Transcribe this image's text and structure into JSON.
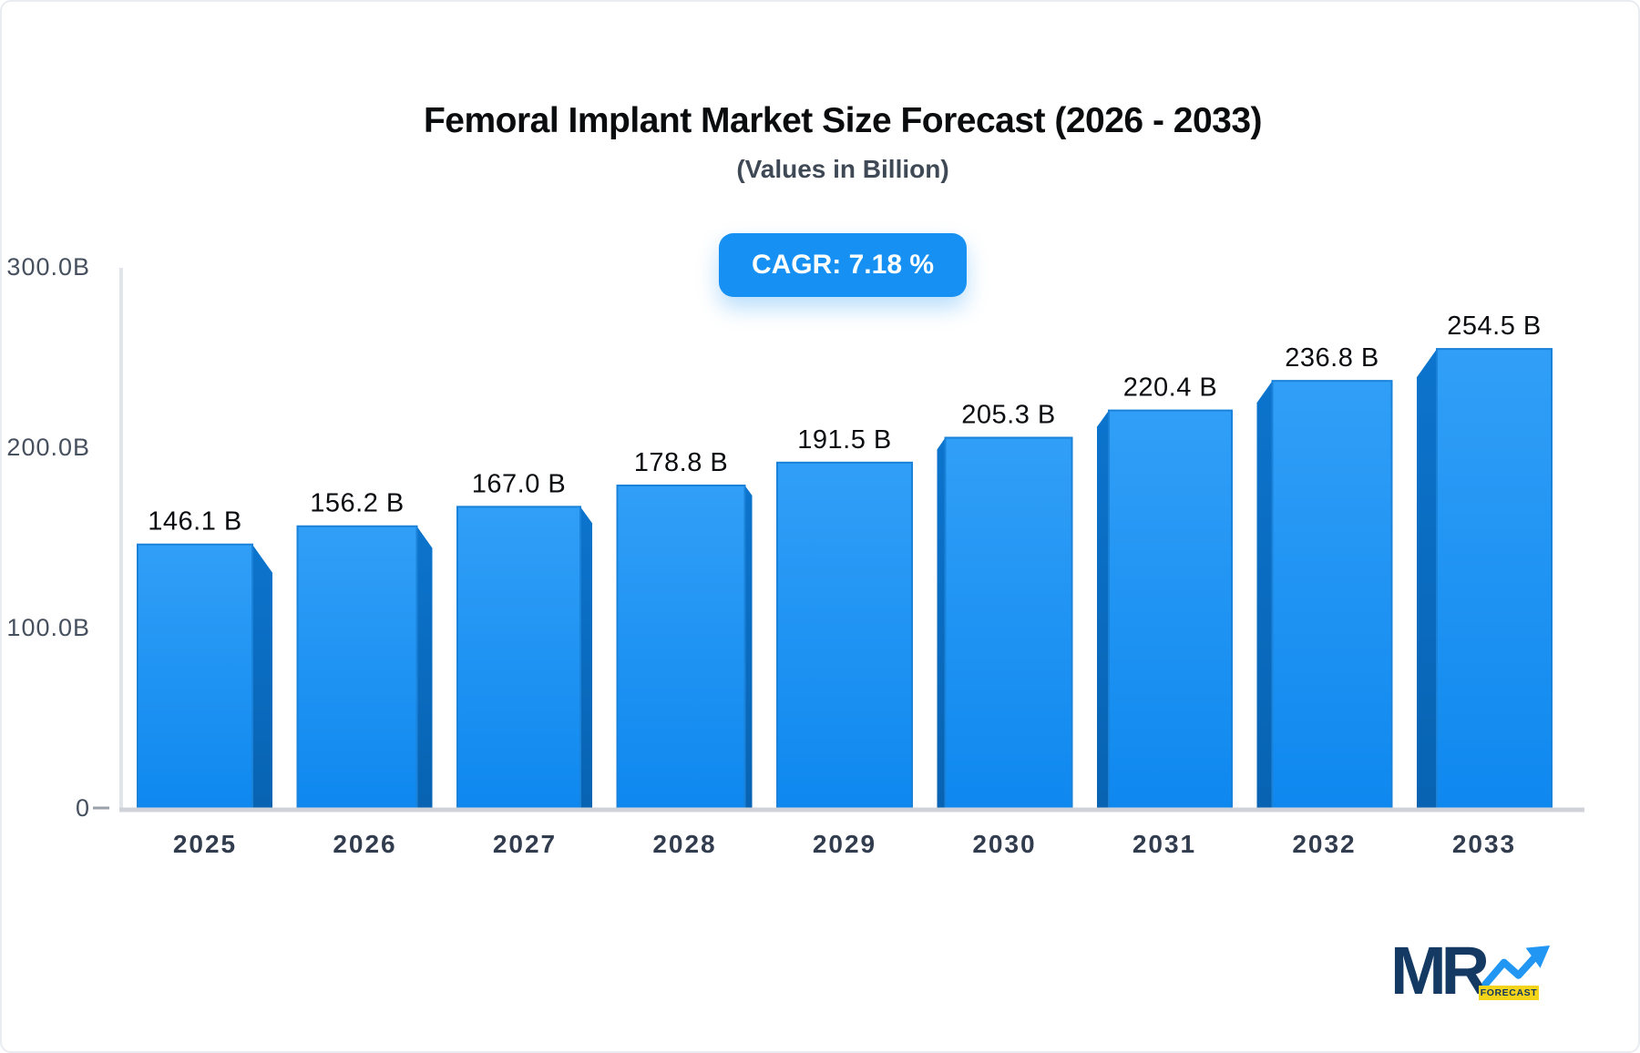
{
  "chart_data": {
    "type": "bar",
    "title": "Femoral Implant Market Size Forecast (2026 - 2033)",
    "subtitle": "(Values in Billion)",
    "cagr_label": "CAGR: 7.18 %",
    "categories": [
      "2025",
      "2026",
      "2027",
      "2028",
      "2029",
      "2030",
      "2031",
      "2032",
      "2033"
    ],
    "values": [
      146.1,
      156.2,
      167.0,
      178.8,
      191.5,
      205.3,
      220.4,
      236.8,
      254.5
    ],
    "value_labels": [
      "146.1 B",
      "156.2 B",
      "167.0 B",
      "178.8 B",
      "191.5 B",
      "205.3 B",
      "220.4 B",
      "236.8 B",
      "254.5 B"
    ],
    "xlabel": "",
    "ylabel": "",
    "y_axis": {
      "range": [
        0,
        300
      ],
      "ticks": [
        {
          "label": "300.0B",
          "value": 300
        },
        {
          "label": "200.0B",
          "value": 200
        },
        {
          "label": "100.0B",
          "value": 100
        },
        {
          "label": "0",
          "value": 0
        }
      ]
    },
    "grid": false,
    "legend": false,
    "colors": {
      "bar_face_top": "#319ff7",
      "bar_face_bottom": "#0e88ef",
      "bar_edge": "#1b82da",
      "bar_side_top": "#0c74cd",
      "bar_side_bottom": "#0863b2",
      "axis_line": "#e1e4e9",
      "baseline": "#cfd3d9",
      "zero_dash": "#9aa1ab",
      "tick_text": "#46505f",
      "category_text": "#313c4e",
      "value_text": "#0b0d10",
      "accent_blue": "#1691f3"
    }
  },
  "logo": {
    "mr": "MR",
    "forecast": "FORECAST"
  }
}
